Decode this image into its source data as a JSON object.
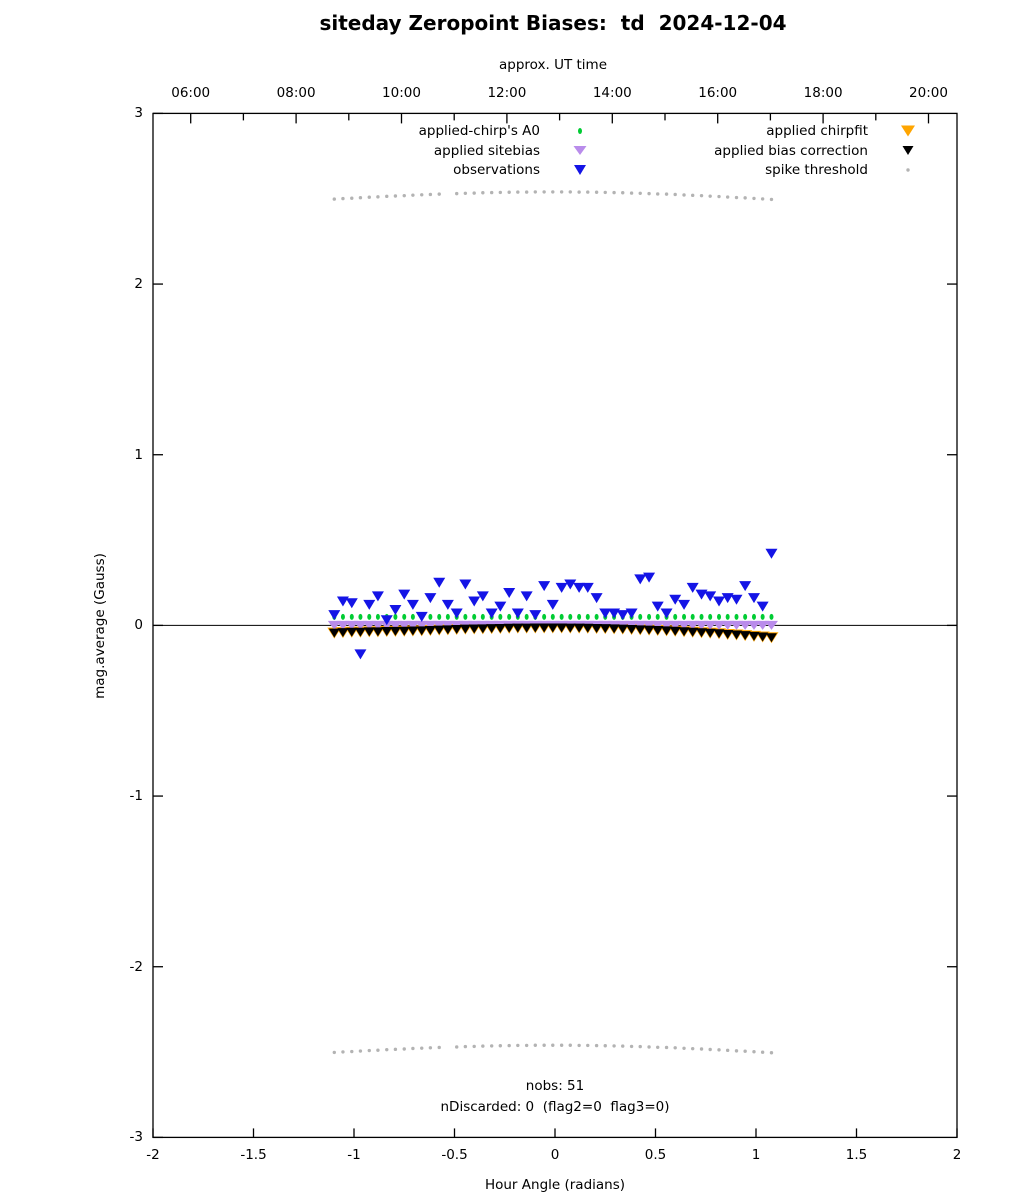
{
  "title": "siteday Zeropoint Biases:  td  2024-12-04",
  "axes": {
    "top": {
      "title": "approx. UT time",
      "major_ticks": [
        {
          "hour": 6,
          "label": "06:00"
        },
        {
          "hour": 8,
          "label": "08:00"
        },
        {
          "hour": 10,
          "label": "10:00"
        },
        {
          "hour": 12,
          "label": "12:00"
        },
        {
          "hour": 14,
          "label": "14:00"
        },
        {
          "hour": 16,
          "label": "16:00"
        },
        {
          "hour": 18,
          "label": "18:00"
        },
        {
          "hour": 20,
          "label": "20:00"
        }
      ],
      "minor_hours": [
        7,
        9,
        11,
        13,
        15,
        17,
        19
      ]
    },
    "bottom": {
      "title": "Hour Angle (radians)",
      "ticks": [
        {
          "value": -2,
          "label": "-2"
        },
        {
          "value": -1.5,
          "label": "-1.5"
        },
        {
          "value": -1,
          "label": "-1"
        },
        {
          "value": -0.5,
          "label": "-0.5"
        },
        {
          "value": 0,
          "label": "0"
        },
        {
          "value": 0.5,
          "label": "0.5"
        },
        {
          "value": 1,
          "label": "1"
        },
        {
          "value": 1.5,
          "label": "1.5"
        },
        {
          "value": 2,
          "label": "2"
        }
      ]
    },
    "left": {
      "title": "mag.average (Gauss)",
      "ticks": [
        {
          "value": 3,
          "label": "3"
        },
        {
          "value": 2,
          "label": "2"
        },
        {
          "value": 1,
          "label": "1"
        },
        {
          "value": 0,
          "label": "0"
        },
        {
          "value": -1,
          "label": "-1"
        },
        {
          "value": -2,
          "label": "-2"
        },
        {
          "value": -3,
          "label": "-3"
        }
      ]
    },
    "right": {
      "mirror_tick_values": [
        2,
        1,
        0,
        -1,
        -2
      ]
    }
  },
  "annotations": {
    "nobs": "nobs: 51",
    "ndiscarded": "nDiscarded: 0  (flag2=0  flag3=0)"
  },
  "legend": {
    "left": [
      {
        "label": "applied-chirp's A0",
        "series": "a0"
      },
      {
        "label": "applied sitebias",
        "series": "sitebias"
      },
      {
        "label": "observations",
        "series": "observations"
      }
    ],
    "right": [
      {
        "label": "applied chirpfit",
        "series": "chirpfit"
      },
      {
        "label": "applied bias correction",
        "series": "bias_correction"
      },
      {
        "label": "spike threshold",
        "series": "spike_threshold"
      }
    ]
  },
  "colors": {
    "a0": "#00cc33",
    "sitebias": "#b98ceb",
    "observations": "#1414e6",
    "chirpfit": "#ffa500",
    "bias_correction": "#000000",
    "spike_threshold": "#b3b3b3",
    "axis": "#000000"
  },
  "chart_data": {
    "type": "scatter",
    "title": "siteday Zeropoint Biases: td 2024-12-04",
    "xlabel": "Hour Angle (radians)",
    "ylabel": "mag.average (Gauss)",
    "top_xlabel": "approx. UT time",
    "xlim": [
      -2,
      2
    ],
    "ylim": [
      -3,
      3
    ],
    "grid": false,
    "zero_line": true,
    "legend_position": "top-inside",
    "nobs": 51,
    "ndiscarded": 0,
    "x": [
      -1.098,
      -1.055,
      -1.011,
      -0.968,
      -0.924,
      -0.881,
      -0.837,
      -0.794,
      -0.75,
      -0.707,
      -0.663,
      -0.62,
      -0.576,
      -0.533,
      -0.489,
      -0.446,
      -0.402,
      -0.359,
      -0.315,
      -0.272,
      -0.228,
      -0.185,
      -0.141,
      -0.098,
      -0.054,
      -0.011,
      0.033,
      0.076,
      0.12,
      0.163,
      0.207,
      0.25,
      0.294,
      0.337,
      0.381,
      0.424,
      0.468,
      0.511,
      0.555,
      0.598,
      0.642,
      0.685,
      0.729,
      0.772,
      0.816,
      0.859,
      0.903,
      0.946,
      0.99,
      1.033,
      1.077
    ],
    "series": [
      {
        "key": "spike_threshold_upper",
        "name": "spike threshold (upper)",
        "color_key": "spike_threshold",
        "marker": "small-dot",
        "gap_index": 13,
        "y": [
          2.498,
          2.501,
          2.503,
          2.506,
          2.509,
          2.511,
          2.514,
          2.516,
          2.518,
          2.521,
          2.523,
          2.525,
          2.527,
          2.529,
          2.53,
          2.532,
          2.533,
          2.535,
          2.536,
          2.537,
          2.538,
          2.539,
          2.539,
          2.54,
          2.54,
          2.54,
          2.54,
          2.54,
          2.539,
          2.539,
          2.538,
          2.537,
          2.536,
          2.535,
          2.533,
          2.532,
          2.53,
          2.528,
          2.527,
          2.525,
          2.522,
          2.52,
          2.518,
          2.515,
          2.513,
          2.51,
          2.507,
          2.505,
          2.502,
          2.499,
          2.496
        ]
      },
      {
        "key": "spike_threshold_lower",
        "name": "spike threshold (lower)",
        "color_key": "spike_threshold",
        "marker": "small-dot",
        "gap_index": 13,
        "y": [
          -2.502,
          -2.499,
          -2.497,
          -2.494,
          -2.491,
          -2.489,
          -2.486,
          -2.484,
          -2.482,
          -2.479,
          -2.477,
          -2.475,
          -2.473,
          -2.471,
          -2.47,
          -2.468,
          -2.467,
          -2.465,
          -2.464,
          -2.463,
          -2.462,
          -2.461,
          -2.461,
          -2.46,
          -2.46,
          -2.46,
          -2.46,
          -2.46,
          -2.461,
          -2.461,
          -2.462,
          -2.463,
          -2.464,
          -2.465,
          -2.467,
          -2.468,
          -2.47,
          -2.472,
          -2.473,
          -2.475,
          -2.478,
          -2.48,
          -2.482,
          -2.485,
          -2.487,
          -2.49,
          -2.493,
          -2.495,
          -2.498,
          -2.501,
          -2.504
        ]
      },
      {
        "key": "chirpfit",
        "name": "applied chirpfit",
        "color_key": "chirpfit",
        "marker": "triangle-down",
        "y": [
          -0.045,
          -0.042,
          -0.04,
          -0.04,
          -0.038,
          -0.038,
          -0.036,
          -0.035,
          -0.034,
          -0.033,
          -0.032,
          -0.03,
          -0.028,
          -0.026,
          -0.024,
          -0.022,
          -0.021,
          -0.02,
          -0.019,
          -0.018,
          -0.017,
          -0.016,
          -0.016,
          -0.015,
          -0.015,
          -0.015,
          -0.015,
          -0.016,
          -0.016,
          -0.017,
          -0.018,
          -0.019,
          -0.02,
          -0.022,
          -0.024,
          -0.026,
          -0.028,
          -0.03,
          -0.032,
          -0.034,
          -0.037,
          -0.04,
          -0.043,
          -0.046,
          -0.049,
          -0.053,
          -0.056,
          -0.06,
          -0.064,
          -0.068,
          -0.072
        ]
      },
      {
        "key": "sitebias",
        "name": "applied sitebias",
        "color_key": "sitebias",
        "marker": "triangle-down",
        "y_const": 0.0
      },
      {
        "key": "bias_correction",
        "name": "applied bias correction",
        "color_key": "bias_correction",
        "marker": "triangle-down",
        "y": [
          -0.045,
          -0.042,
          -0.04,
          -0.04,
          -0.038,
          -0.038,
          -0.036,
          -0.035,
          -0.034,
          -0.033,
          -0.032,
          -0.03,
          -0.028,
          -0.026,
          -0.024,
          -0.022,
          -0.021,
          -0.02,
          -0.019,
          -0.018,
          -0.017,
          -0.016,
          -0.016,
          -0.015,
          -0.015,
          -0.015,
          -0.015,
          -0.016,
          -0.016,
          -0.017,
          -0.018,
          -0.019,
          -0.02,
          -0.022,
          -0.024,
          -0.026,
          -0.028,
          -0.03,
          -0.032,
          -0.034,
          -0.037,
          -0.04,
          -0.043,
          -0.046,
          -0.049,
          -0.053,
          -0.056,
          -0.06,
          -0.064,
          -0.068,
          -0.072
        ]
      },
      {
        "key": "a0",
        "name": "applied-chirp's A0",
        "color_key": "a0",
        "marker": "dot",
        "y_const": 0.05
      },
      {
        "key": "observations",
        "name": "observations",
        "color_key": "observations",
        "marker": "triangle-down",
        "y": [
          0.06,
          0.14,
          0.13,
          -0.17,
          0.12,
          0.17,
          0.03,
          0.09,
          0.18,
          0.12,
          0.05,
          0.16,
          0.25,
          0.12,
          0.07,
          0.24,
          0.14,
          0.17,
          0.07,
          0.11,
          0.19,
          0.07,
          0.17,
          0.06,
          0.23,
          0.12,
          0.22,
          0.24,
          0.22,
          0.22,
          0.16,
          0.07,
          0.07,
          0.06,
          0.07,
          0.27,
          0.28,
          0.11,
          0.07,
          0.15,
          0.12,
          0.22,
          0.18,
          0.17,
          0.14,
          0.16,
          0.15,
          0.23,
          0.16,
          0.11,
          0.42
        ]
      }
    ]
  }
}
